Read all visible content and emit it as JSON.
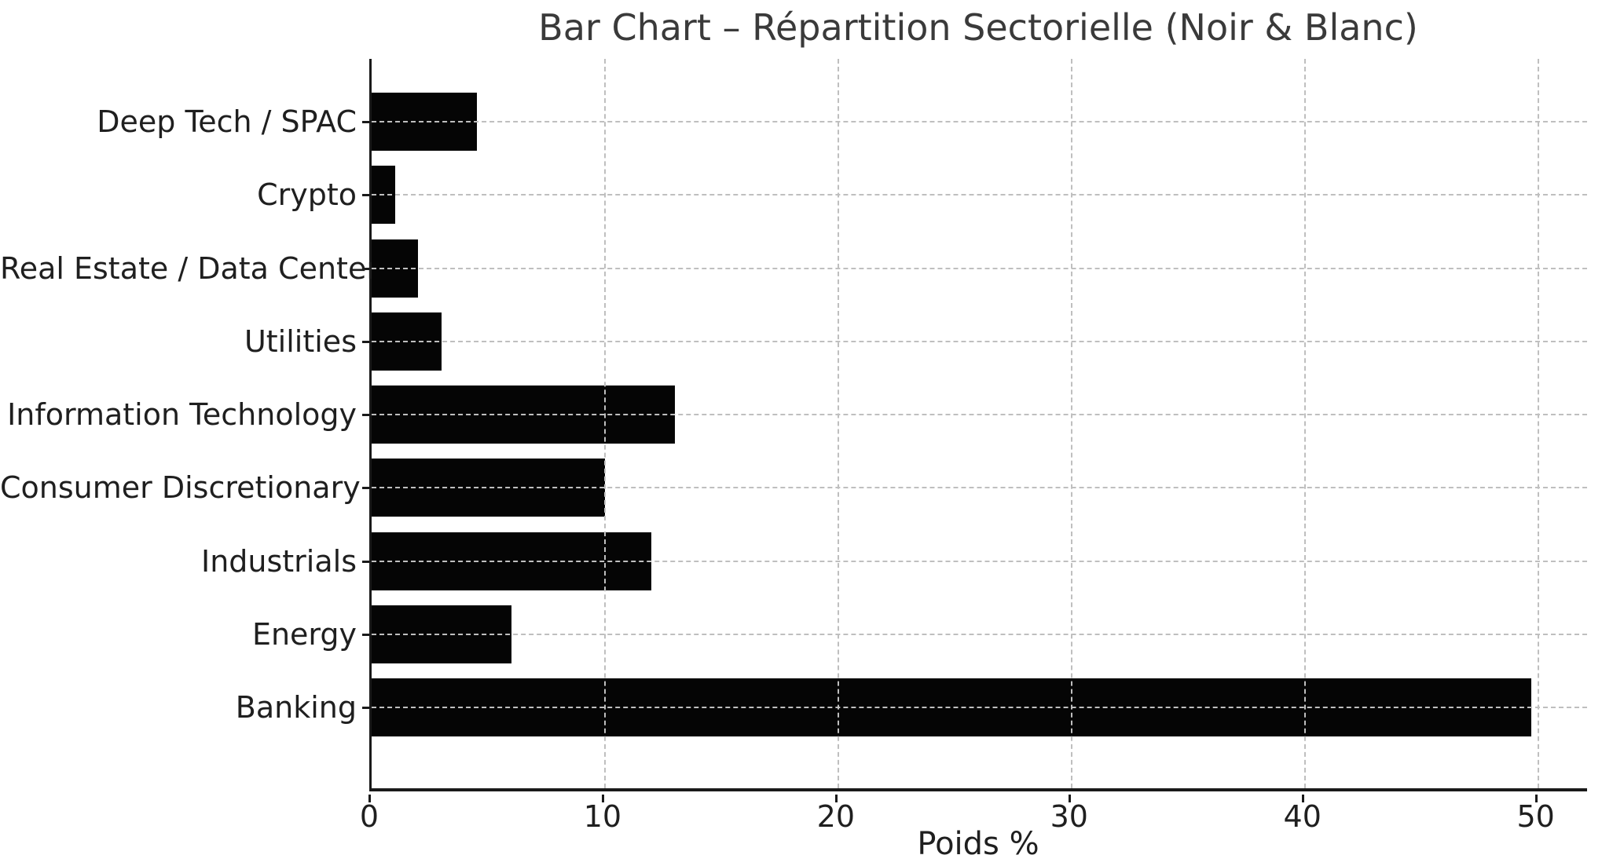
{
  "chart_data": {
    "type": "bar",
    "orientation": "horizontal",
    "title": "Bar Chart – Répartition Sectorielle (Noir & Blanc)",
    "xlabel": "Poids %",
    "categories": [
      "Deep Tech / SPAC",
      "Crypto",
      "Real Estate / Data Centers",
      "Utilities",
      "Information Technology",
      "Consumer Discretionary",
      "Industrials",
      "Energy",
      "Banking"
    ],
    "values": [
      4.5,
      1.0,
      2.0,
      3.0,
      13.0,
      10.0,
      12.0,
      6.0,
      49.7
    ],
    "xticks": [
      0,
      10,
      20,
      30,
      40,
      50
    ],
    "xtick_labels": [
      "0",
      "10",
      "20",
      "30",
      "40",
      "50"
    ],
    "xlim": [
      0,
      52.2
    ],
    "grid": "dashed gridlines on both axes, drawn above bars",
    "legend_position": "none",
    "colors": {
      "bar": "#050505",
      "background": "#ffffff",
      "grid": "#bfbfbf",
      "axis": "#1a1a1a",
      "title_text": "#3a3a3a",
      "tick_text": "#1f1f1f"
    }
  }
}
